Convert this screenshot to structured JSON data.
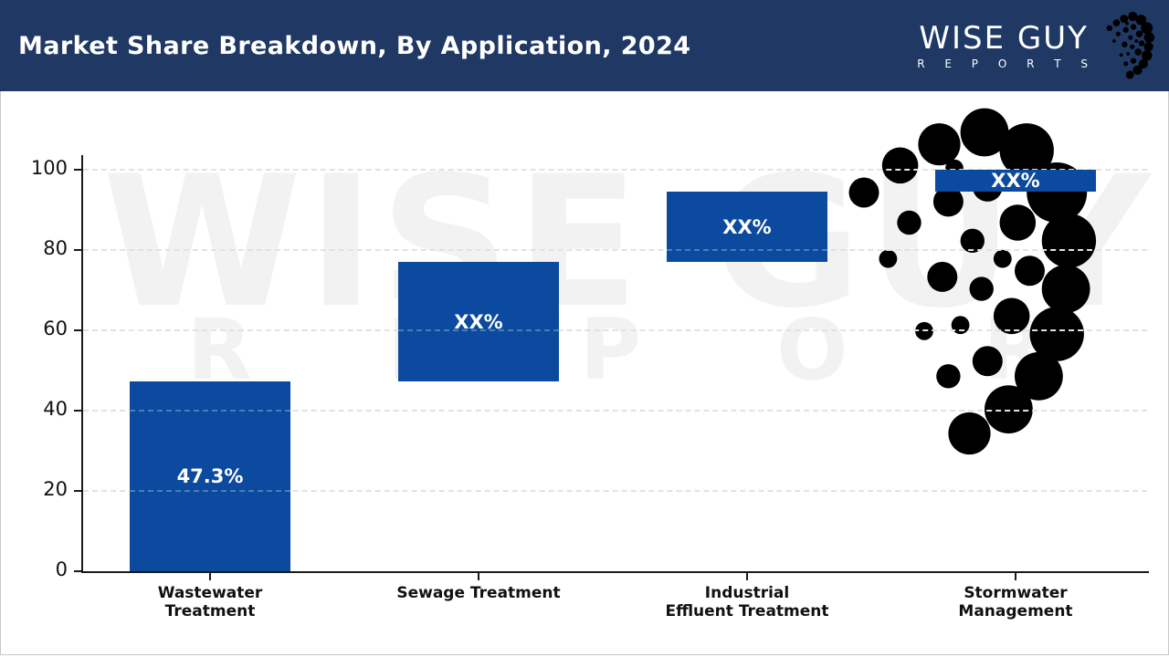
{
  "header": {
    "title": "Market Share Breakdown, By Application, 2024",
    "background_color": "#1f3864"
  },
  "logo": {
    "brand": "WISE GUY",
    "sub": "R E P O R T S"
  },
  "watermark": {
    "line1": "WISE GUY",
    "line2": "R E P O R T S"
  },
  "chart_data": {
    "type": "bar",
    "subtype": "waterfall",
    "title": "Market Share Breakdown, By Application, 2024",
    "xlabel": "",
    "ylabel": "",
    "categories": [
      "Wastewater\nTreatment",
      "Sewage Treatment",
      "Industrial\nEffluent Treatment",
      "Stormwater\nManagement"
    ],
    "segments": [
      {
        "category": "Wastewater Treatment",
        "start": 0,
        "end": 47.3,
        "label": "47.3%"
      },
      {
        "category": "Sewage Treatment",
        "start": 47.3,
        "end": 77,
        "label": "XX%"
      },
      {
        "category": "Industrial Effluent Treatment",
        "start": 77,
        "end": 94.5,
        "label": "XX%"
      },
      {
        "category": "Stormwater Management",
        "start": 94.5,
        "end": 100,
        "label": "XX%"
      }
    ],
    "yticks": [
      0,
      20,
      40,
      60,
      80,
      100
    ],
    "ylim": [
      0,
      104
    ],
    "grid": true,
    "grid_style": "dashed",
    "legend": false,
    "bar_color": "#0b4a9e",
    "bar_label_color": "#ffffff",
    "axis_color": "#1a1a1a"
  }
}
